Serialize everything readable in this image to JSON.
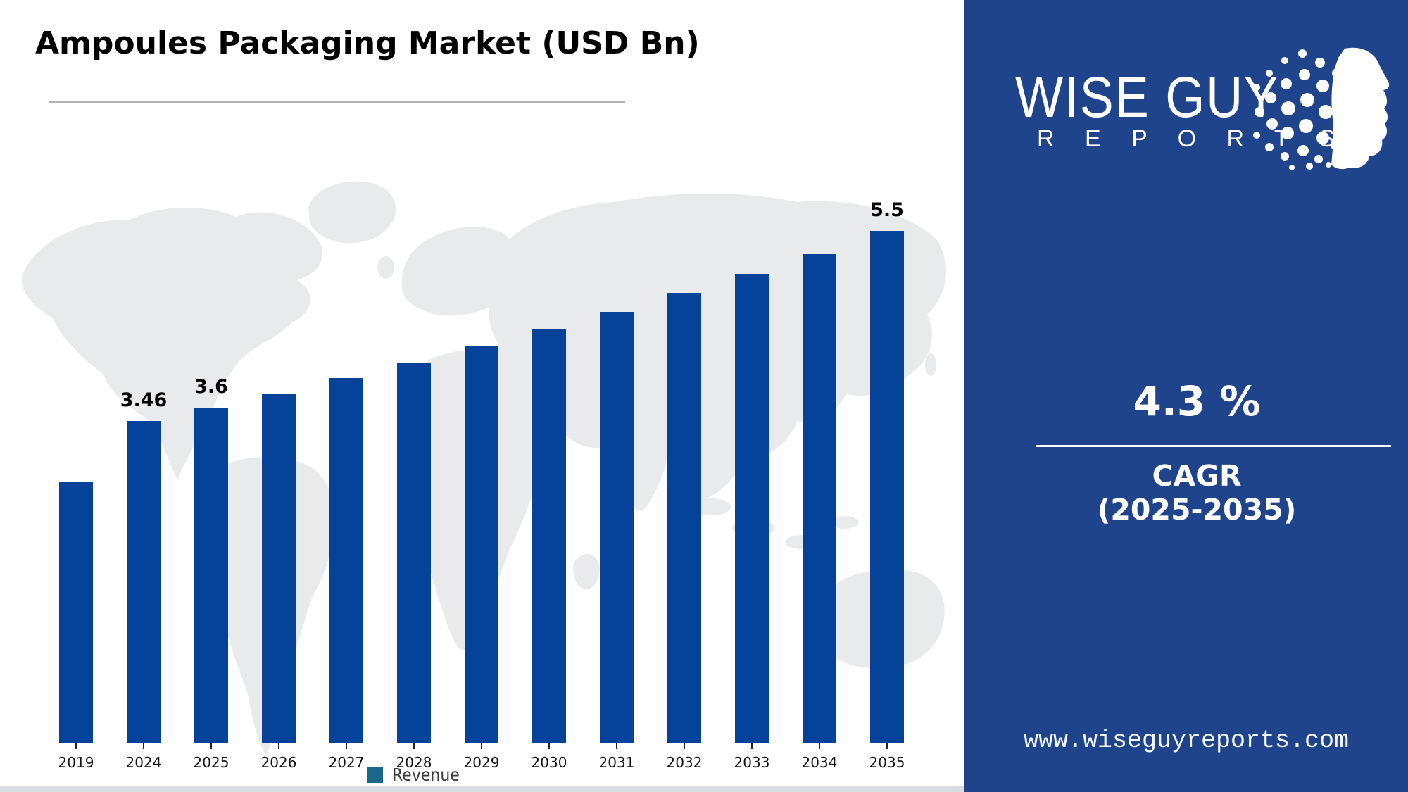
{
  "title": "Ampoules Packaging Market (USD Bn)",
  "chart_data": {
    "type": "bar",
    "title": "Ampoules Packaging Market (USD Bn)",
    "categories": [
      "2019",
      "2024",
      "2025",
      "2026",
      "2027",
      "2028",
      "2029",
      "2030",
      "2031",
      "2032",
      "2033",
      "2034",
      "2035"
    ],
    "values": [
      2.8,
      3.46,
      3.6,
      3.75,
      3.92,
      4.08,
      4.26,
      4.44,
      4.63,
      4.83,
      5.04,
      5.25,
      5.5
    ],
    "data_labels": {
      "2024": "3.46",
      "2025": "3.6",
      "2035": "5.5"
    },
    "xlabel": "",
    "ylabel": "",
    "ylim": [
      0,
      5.7
    ],
    "grid": false,
    "legend_label": "Revenue",
    "legend_position": "bottom",
    "bar_color": "#05439b",
    "legend_swatch_color": "#19688a"
  },
  "right_panel": {
    "logo_line1": "WISE GUY",
    "logo_line2": "REPORTS",
    "cagr_value": "4.3 %",
    "cagr_label": "CAGR",
    "cagr_range": "(2025-2035)",
    "website": "www.wiseguyreports.com",
    "background_color": "#1f448c"
  }
}
